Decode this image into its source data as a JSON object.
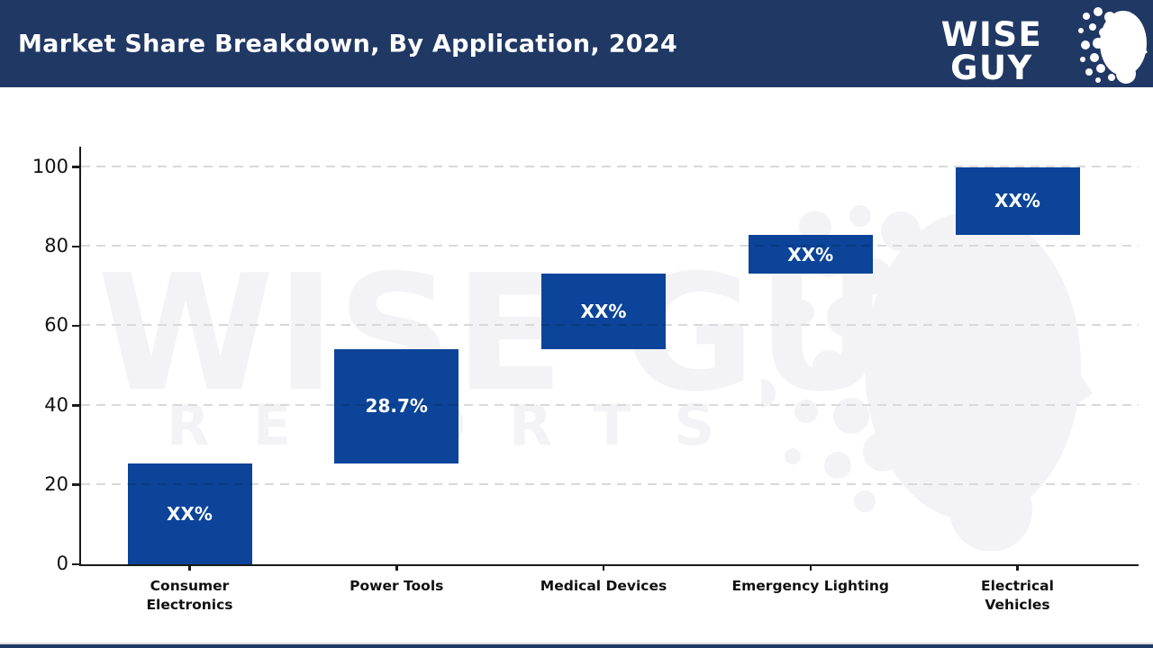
{
  "header": {
    "title": "Market Share Breakdown, By Application, 2024",
    "logo": {
      "line1": "WISE GUY",
      "line2": "REPORTS"
    }
  },
  "watermark": {
    "line1": "WISE GUY",
    "line2": "REPORTS"
  },
  "colors": {
    "header_bg": "#203864",
    "bar": "#0b4499",
    "grid": "#d9d9d9",
    "watermark": "#f3f3f5",
    "axis": "#1a1a1a",
    "bar_label_text": "#ffffff"
  },
  "chart_data": {
    "type": "bar",
    "subtype": "floating-waterfall",
    "title": "Market Share Breakdown, By Application, 2024",
    "xlabel": "",
    "ylabel": "",
    "ylim": [
      0,
      105.2
    ],
    "yticks": [
      0,
      20,
      40,
      60,
      80,
      100
    ],
    "grid": "dashed-horizontal",
    "legend": "none",
    "categories": [
      "Consumer Electronics",
      "Power Tools",
      "Medical Devices",
      "Emergency Lighting",
      "Electrical Vehicles"
    ],
    "bars": [
      {
        "category": "Consumer Electronics",
        "category_display": "Consumer\nElectronics",
        "start": 0,
        "end": 25.5,
        "label": "XX%"
      },
      {
        "category": "Power Tools",
        "category_display": "Power Tools",
        "start": 25.5,
        "end": 54.2,
        "label": "28.7%"
      },
      {
        "category": "Medical Devices",
        "category_display": "Medical Devices",
        "start": 54.2,
        "end": 73.2,
        "label": "XX%"
      },
      {
        "category": "Emergency Lighting",
        "category_display": "Emergency Lighting",
        "start": 73.2,
        "end": 83.0,
        "label": "XX%"
      },
      {
        "category": "Electrical Vehicles",
        "category_display": "Electrical\nVehicles",
        "start": 83.0,
        "end": 100.0,
        "label": "XX%"
      }
    ]
  }
}
